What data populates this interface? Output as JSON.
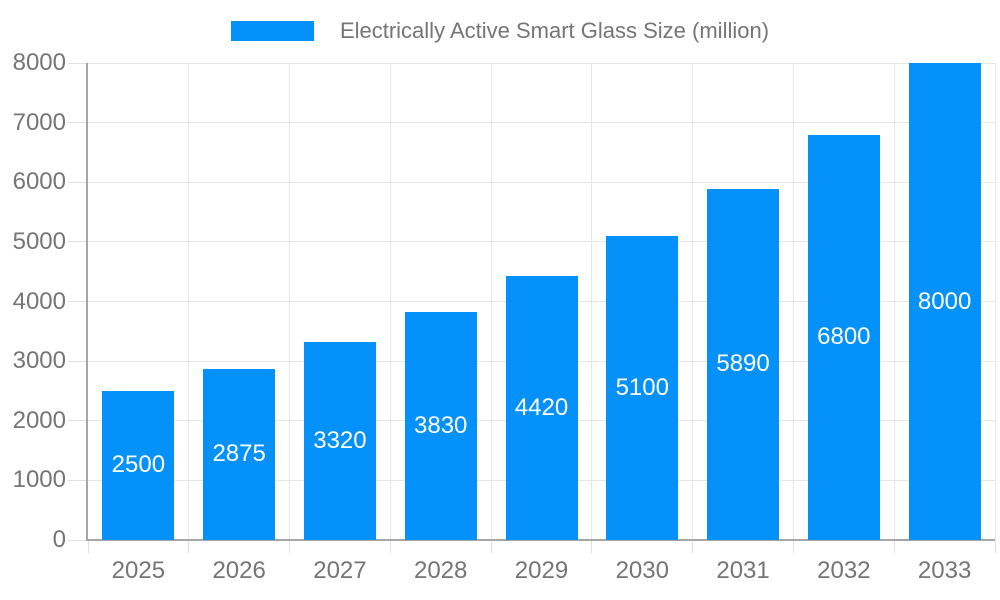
{
  "chart_data": {
    "type": "bar",
    "title": "Electrically Active Smart Glass Size (million)",
    "legend": [
      {
        "label": "Electrically Active Smart Glass Size (million)",
        "color": "#0591fa"
      }
    ],
    "legend_position": "top",
    "categories": [
      "2025",
      "2026",
      "2027",
      "2028",
      "2029",
      "2030",
      "2031",
      "2032",
      "2033"
    ],
    "values": [
      2500,
      2875,
      3320,
      3830,
      4420,
      5100,
      5890,
      6800,
      8000
    ],
    "value_labels": [
      "2500",
      "2875",
      "3320",
      "3830",
      "4420",
      "5100",
      "5890",
      "6800",
      "8000"
    ],
    "xlabel": "",
    "ylabel": "",
    "ylim": [
      0,
      8000
    ],
    "yticks": [
      0,
      1000,
      2000,
      3000,
      4000,
      5000,
      6000,
      7000,
      8000
    ],
    "grid": true,
    "colors": {
      "bar": "#0591fa",
      "bar_value_text": "#ffffff",
      "axis_text": "#757575",
      "gridline": "#e6e6e6",
      "tick": "#e0e0e0",
      "axis_line": "#a6a6a6"
    }
  }
}
